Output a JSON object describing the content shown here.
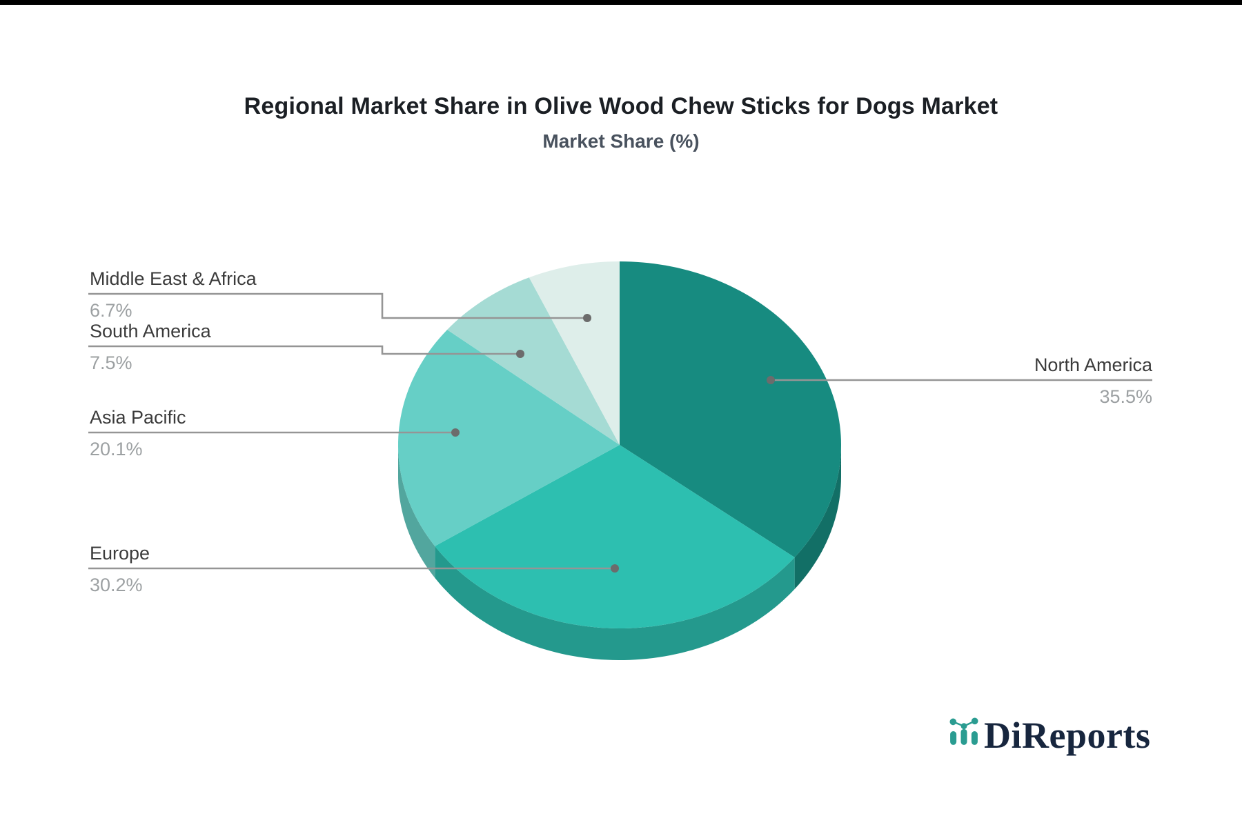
{
  "chart_data": {
    "type": "pie",
    "title": "Regional Market Share in Olive Wood Chew Sticks for Dogs Market",
    "subtitle": "Market Share (%)",
    "unit": "%",
    "style": "3d-pie",
    "start_angle_deg": 0,
    "direction": "clockwise",
    "legend_position": "callout-labels",
    "slices": [
      {
        "label": "North America",
        "value": 35.5,
        "display": "35.5%",
        "color": "#178b80"
      },
      {
        "label": "Europe",
        "value": 30.2,
        "display": "30.2%",
        "color": "#2dbfb0"
      },
      {
        "label": "Asia Pacific",
        "value": 20.1,
        "display": "20.1%",
        "color": "#66cfc6"
      },
      {
        "label": "South America",
        "value": 7.5,
        "display": "7.5%",
        "color": "#a5dbd4"
      },
      {
        "label": "Middle East & Africa",
        "value": 6.7,
        "display": "6.7%",
        "color": "#deeeea"
      }
    ]
  },
  "branding": {
    "logo_text": "DiReports",
    "logo_icon": "bar-line-chart-icon"
  },
  "colors": {
    "background": "#ffffff",
    "top_bar": "#000000",
    "title": "#1b1f24",
    "subtitle": "#49525e",
    "label": "#3b3b3b",
    "value": "#9ca0a2",
    "leader": "#959595",
    "dot": "#6c6c6c",
    "logo_text": "#17263e",
    "logo_icon": "#2a9c91"
  }
}
